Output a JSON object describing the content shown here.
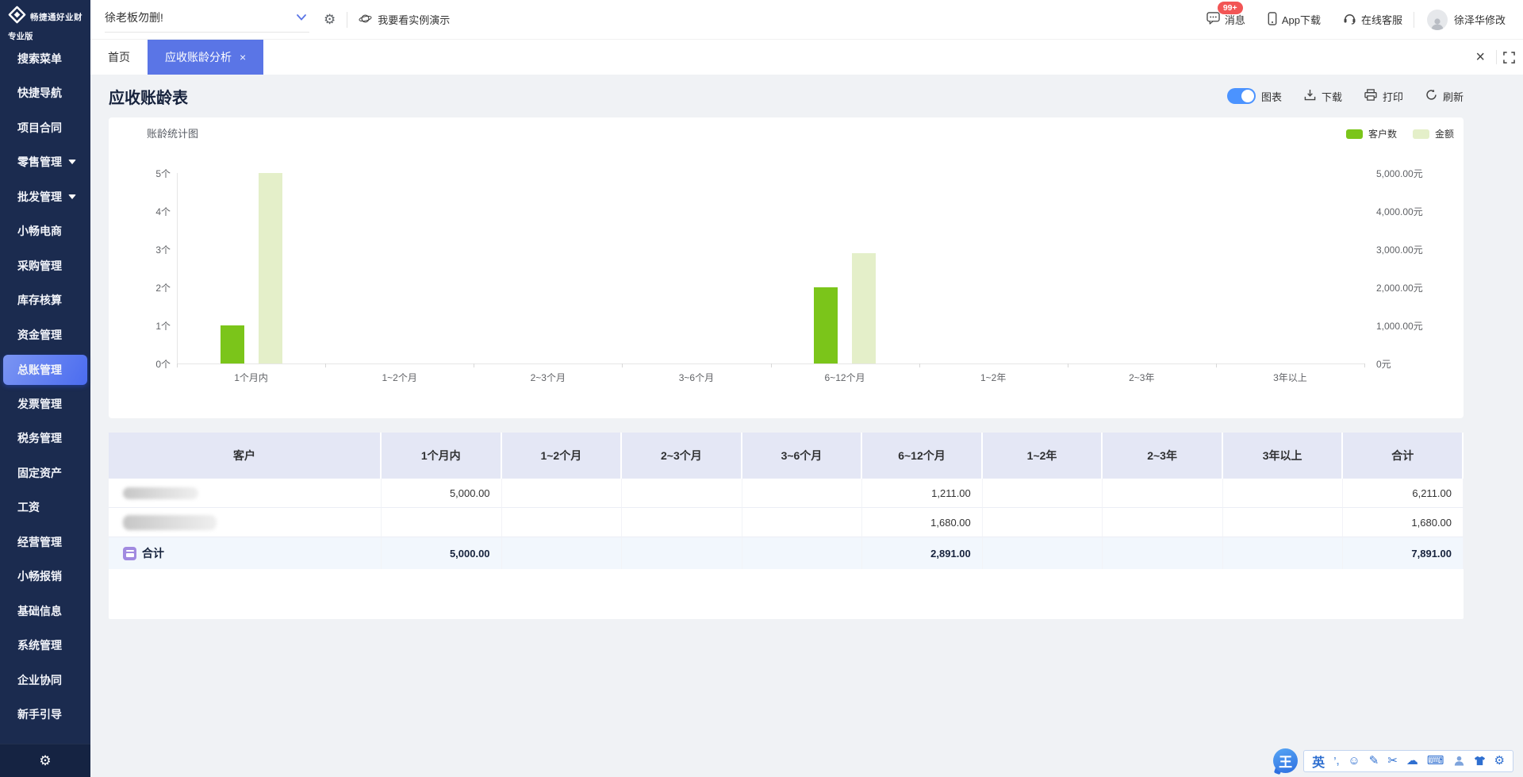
{
  "app": {
    "brand": "畅捷通好业财",
    "edition": "专业版"
  },
  "sidebar": {
    "items": [
      {
        "id": "search-menu",
        "label": "搜索菜单"
      },
      {
        "id": "quick-nav",
        "label": "快捷导航"
      },
      {
        "id": "project-contract",
        "label": "项目合同"
      },
      {
        "id": "retail-mgmt",
        "label": "零售管理",
        "arrow": true
      },
      {
        "id": "wholesale-mgmt",
        "label": "批发管理",
        "arrow": true
      },
      {
        "id": "xiaochang-ecommerce",
        "label": "小畅电商"
      },
      {
        "id": "purchase-mgmt",
        "label": "采购管理"
      },
      {
        "id": "inventory-accounting",
        "label": "库存核算"
      },
      {
        "id": "capital-mgmt",
        "label": "资金管理"
      },
      {
        "id": "general-ledger",
        "label": "总账管理",
        "active": true
      },
      {
        "id": "invoice-mgmt",
        "label": "发票管理"
      },
      {
        "id": "tax-mgmt",
        "label": "税务管理"
      },
      {
        "id": "fixed-assets",
        "label": "固定资产"
      },
      {
        "id": "payroll",
        "label": "工资"
      },
      {
        "id": "business-mgmt",
        "label": "经营管理"
      },
      {
        "id": "xiaochang-expense",
        "label": "小畅报销"
      },
      {
        "id": "basic-info",
        "label": "基础信息"
      },
      {
        "id": "system-mgmt",
        "label": "系统管理"
      },
      {
        "id": "enterprise-collab",
        "label": "企业协同"
      },
      {
        "id": "beginner-guide",
        "label": "新手引导"
      }
    ]
  },
  "topbar": {
    "account_name": "徐老板勿删!",
    "demo_link": "我要看实例演示",
    "messages_label": "消息",
    "messages_badge": "99+",
    "app_download_label": "App下载",
    "support_label": "在线客服",
    "username": "徐泽华修改"
  },
  "tabs": [
    {
      "id": "home",
      "label": "首页",
      "active": false,
      "closable": false
    },
    {
      "id": "ar-aging-analysis",
      "label": "应收账龄分析",
      "active": true,
      "closable": true
    }
  ],
  "tab_controls": {
    "close_glyph": "×"
  },
  "page": {
    "title": "应收账龄表",
    "toolbar": {
      "chart_toggle_label": "图表",
      "chart_toggle_on": true,
      "download_label": "下载",
      "print_label": "打印",
      "refresh_label": "刷新"
    }
  },
  "chart": {
    "title": "账龄统计图",
    "legend": [
      {
        "id": "customers",
        "label": "客户数",
        "color": "#7bc51a"
      },
      {
        "id": "amount",
        "label": "金额",
        "color": "#e4efc9"
      }
    ]
  },
  "chart_data": {
    "type": "bar",
    "title": "账龄统计图",
    "categories": [
      "1个月内",
      "1~2个月",
      "2~3个月",
      "3~6个月",
      "6~12个月",
      "1~2年",
      "2~3年",
      "3年以上"
    ],
    "series": [
      {
        "id": "customers",
        "name": "客户数",
        "axis": "left",
        "color": "#7bc51a",
        "values": [
          1,
          0,
          0,
          0,
          2,
          0,
          0,
          0
        ]
      },
      {
        "id": "amount",
        "name": "金额",
        "axis": "right",
        "color": "#e4efc9",
        "values": [
          5000,
          0,
          0,
          0,
          2891,
          0,
          0,
          0
        ]
      }
    ],
    "left_axis": {
      "ticks": [
        "0个",
        "1个",
        "2个",
        "3个",
        "4个",
        "5个"
      ],
      "min": 0,
      "max": 5
    },
    "right_axis": {
      "ticks": [
        "0元",
        "1,000.00元",
        "2,000.00元",
        "3,000.00元",
        "4,000.00元",
        "5,000.00元"
      ],
      "min": 0,
      "max": 5000
    },
    "legend_position": "top-right",
    "grid": false
  },
  "table": {
    "columns": [
      "客户",
      "1个月内",
      "1~2个月",
      "2~3个月",
      "3~6个月",
      "6~12个月",
      "1~2年",
      "2~3年",
      "3年以上",
      "合计"
    ],
    "rows": [
      {
        "customer_blurred": true,
        "values": [
          "5,000.00",
          "",
          "",
          "",
          "1,211.00",
          "",
          "",
          "",
          "6,211.00"
        ]
      },
      {
        "customer_blurred": true,
        "values": [
          "",
          "",
          "",
          "",
          "1,680.00",
          "",
          "",
          "",
          "1,680.00"
        ]
      }
    ],
    "total_row": {
      "label": "合计",
      "values": [
        "5,000.00",
        "",
        "",
        "",
        "2,891.00",
        "",
        "",
        "",
        "7,891.00"
      ]
    }
  },
  "ime_bar": {
    "logo_text": "王",
    "mode_label": "英",
    "punct_label": "’,",
    "icons": [
      {
        "name": "emoji-icon",
        "glyph": "☺"
      },
      {
        "name": "handwriting-icon",
        "glyph": "✎"
      },
      {
        "name": "clipboard-scissors-icon",
        "glyph": "✂"
      },
      {
        "name": "cloud-sync-icon",
        "glyph": "☁"
      },
      {
        "name": "virtual-keyboard-icon",
        "glyph": "⌨"
      },
      {
        "name": "account-icon",
        "shape": "person"
      },
      {
        "name": "skin-icon",
        "shape": "shirt"
      },
      {
        "name": "ime-settings-gear-icon",
        "glyph": "⚙"
      }
    ]
  },
  "colors": {
    "sidebar_navy": "#1b2b4f",
    "active_item_gradient": [
      "#7b95f2",
      "#4b6cf0"
    ],
    "tab_active_blue": "#5a75e6",
    "toggle_blue": "#4b93ff",
    "bar_customers_green": "#7bc51a",
    "bar_amount_light_green": "#e4efc9",
    "badge_red": "#f25555",
    "table_header_bg": "#e4e7f5",
    "total_row_bg": "#f2f7fd",
    "total_icon_purple": "#a18ae0"
  }
}
